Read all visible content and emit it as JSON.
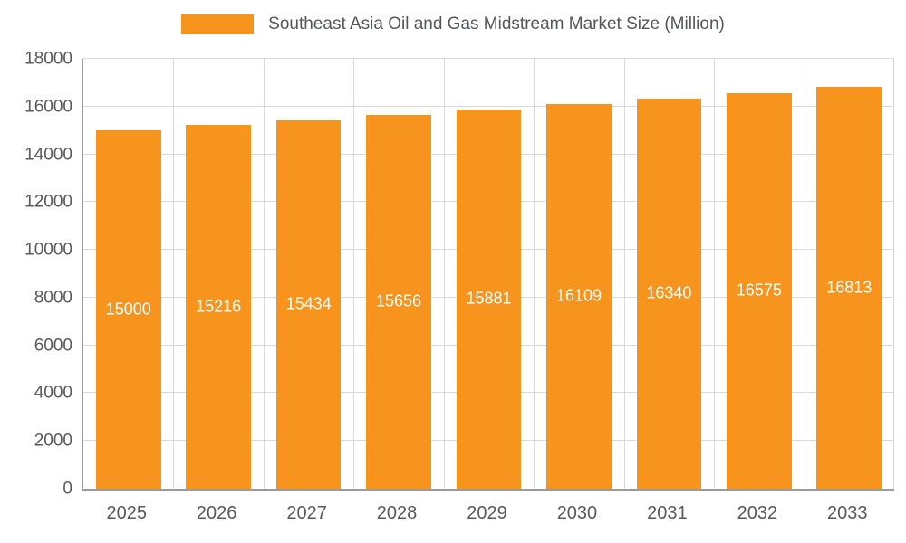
{
  "chart_data": {
    "type": "bar",
    "title": "Southeast Asia Oil and Gas Midstream Market Size (Million)",
    "categories": [
      "2025",
      "2026",
      "2027",
      "2028",
      "2029",
      "2030",
      "2031",
      "2032",
      "2033"
    ],
    "values": [
      15000,
      15216,
      15434,
      15656,
      15881,
      16109,
      16340,
      16575,
      16813
    ],
    "xlabel": "",
    "ylabel": "",
    "ylim": [
      0,
      18000
    ],
    "ytick_step": 2000,
    "grid": true,
    "legend_position": "top",
    "bar_color": "#f7941e",
    "value_label_color": "#ffffff",
    "axis_text_color": "#58595b"
  }
}
